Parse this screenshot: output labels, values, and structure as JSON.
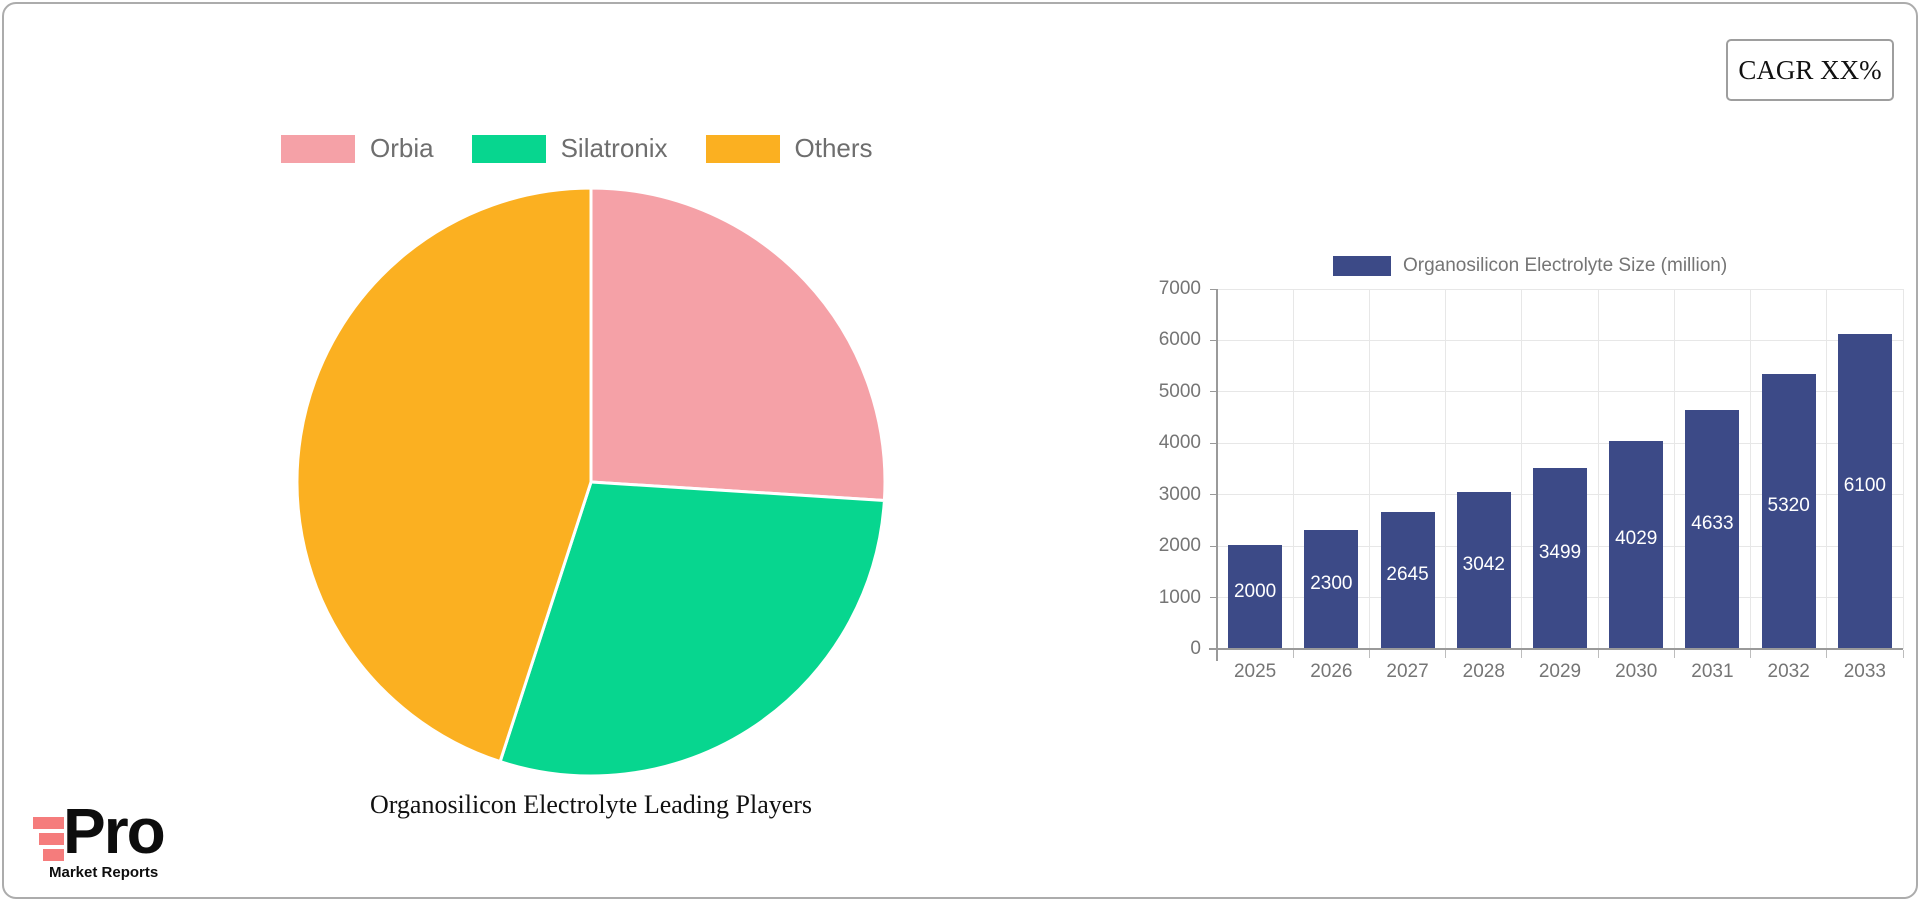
{
  "cagr": {
    "label": "CAGR XX%"
  },
  "logo": {
    "name": "Pro",
    "tagline": "Market Reports",
    "accent_color": "#F57C7C"
  },
  "pie": {
    "title": "Organosilicon Electrolyte Leading Players",
    "legend": [
      {
        "label": "Orbia",
        "color": "#F5A1A7"
      },
      {
        "label": "Silatronix",
        "color": "#07D68F"
      },
      {
        "label": "Others",
        "color": "#FBB021"
      }
    ]
  },
  "bar": {
    "legend_label": "Organosilicon Electrolyte Size (million)",
    "color": "#3C4A87"
  },
  "chart_data": [
    {
      "type": "pie",
      "title": "Organosilicon Electrolyte Leading Players",
      "labels": [
        "Orbia",
        "Silatronix",
        "Others"
      ],
      "values": [
        26,
        29,
        45
      ],
      "unit": "percent (estimated from slice angles, no labels shown)",
      "colors": [
        "#F5A1A7",
        "#07D68F",
        "#FBB021"
      ],
      "start_angle_deg": 0,
      "direction": "clockwise",
      "legend_position": "top",
      "slice_separator_color": "#ffffff"
    },
    {
      "type": "bar",
      "title": "Organosilicon Electrolyte Size (million)",
      "categories": [
        "2025",
        "2026",
        "2027",
        "2028",
        "2029",
        "2030",
        "2031",
        "2032",
        "2033"
      ],
      "values": [
        2000,
        2300,
        2645,
        3042,
        3499,
        4029,
        4633,
        5320,
        6100
      ],
      "xlabel": "",
      "ylabel": "",
      "ylim": [
        0,
        7000
      ],
      "ytick_step": 1000,
      "grid": true,
      "legend_position": "top",
      "bar_color": "#3C4A87",
      "value_labels": "inside bars, white"
    }
  ]
}
